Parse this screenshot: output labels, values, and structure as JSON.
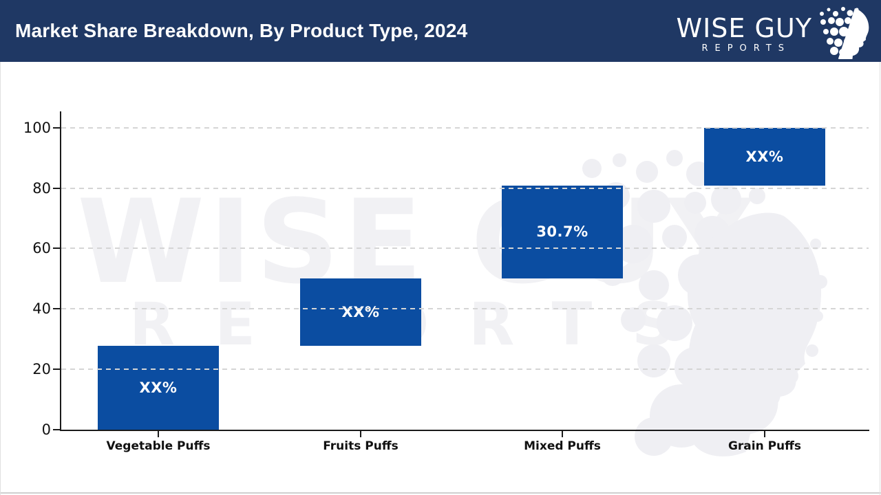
{
  "header": {
    "title": "Market Share Breakdown, By Product Type, 2024",
    "logo": {
      "line1": "WISE GUY",
      "line2": "REPORTS"
    }
  },
  "watermark": {
    "line1": "WISE GUY",
    "line2": "REPORTS"
  },
  "colors": {
    "header_bg": "#1F3864",
    "bar": "#0B4DA1",
    "grid": "#D5D5D5",
    "axis": "#1A1A1A",
    "bar_label_text": "#FFFFFF",
    "watermark": "#F1F1F4"
  },
  "chart_data": {
    "type": "bar",
    "subtype": "floating-waterfall-segments",
    "title": "Market Share Breakdown, By Product Type, 2024",
    "unit": "%",
    "categories": [
      "Vegetable Puffs",
      "Fruits Puffs",
      "Mixed Puffs",
      "Grain Puffs"
    ],
    "segments": [
      {
        "category": "Vegetable Puffs",
        "start": 0,
        "end": 27.7,
        "value": 27.7,
        "label": "XX%"
      },
      {
        "category": "Fruits Puffs",
        "start": 27.7,
        "end": 50.2,
        "value": 22.5,
        "label": "XX%"
      },
      {
        "category": "Mixed Puffs",
        "start": 50.2,
        "end": 80.9,
        "value": 30.7,
        "label": "30.7%"
      },
      {
        "category": "Grain Puffs",
        "start": 80.9,
        "end": 100,
        "value": 19.1,
        "label": "XX%"
      }
    ],
    "yticks": [
      0,
      20,
      40,
      60,
      80,
      100
    ],
    "ylim": [
      0,
      105
    ],
    "xlabel": "",
    "ylabel": "",
    "grid": "horizontal-dashed-above-bars",
    "legend": "none"
  }
}
